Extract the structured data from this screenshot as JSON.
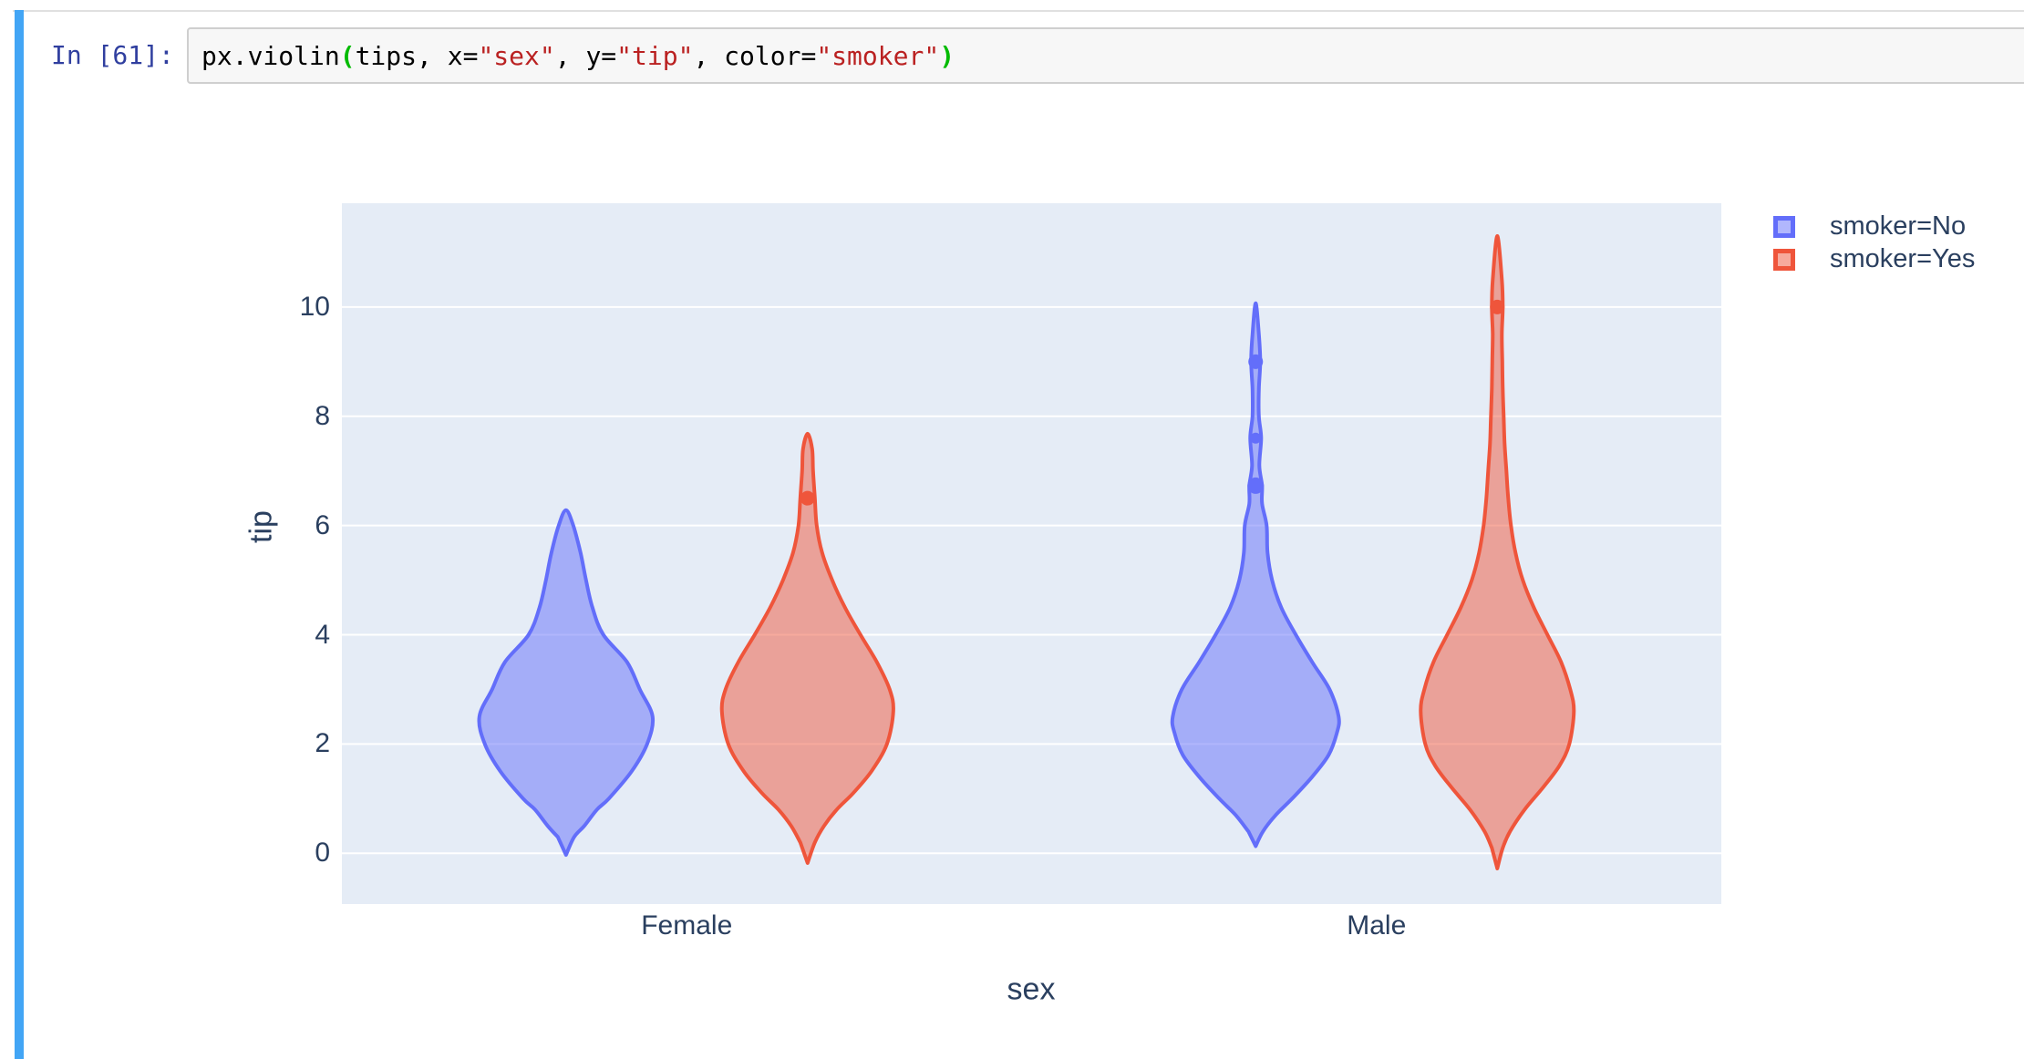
{
  "notebook": {
    "prompt": "In [61]:",
    "code_tokens": [
      {
        "text": "px.violin",
        "type": "plain"
      },
      {
        "text": "(",
        "type": "bracket"
      },
      {
        "text": "tips, x=",
        "type": "plain"
      },
      {
        "text": "\"sex\"",
        "type": "string"
      },
      {
        "text": ", y=",
        "type": "plain"
      },
      {
        "text": "\"tip\"",
        "type": "string"
      },
      {
        "text": ", color=",
        "type": "plain"
      },
      {
        "text": "\"smoker\"",
        "type": "string"
      },
      {
        "text": ")",
        "type": "bracket"
      }
    ]
  },
  "colors": {
    "selected_cell_bar": "#42a5f5",
    "prompt_text": "#303f9f",
    "code_string": "#ba2121",
    "code_bracket": "#00bb00",
    "plot_background": "#e5ecf6",
    "grid_line": "#ffffff",
    "axis_text": "#2a3f5f",
    "smoker_no": "#636efa",
    "smoker_yes": "#ef553b"
  },
  "chart_data": {
    "type": "violin",
    "title": "",
    "xlabel": "sex",
    "ylabel": "tip",
    "categories": [
      "Female",
      "Male"
    ],
    "yticks": [
      0,
      2,
      4,
      6,
      8,
      10
    ],
    "ylim": [
      -0.93,
      11.9
    ],
    "grid": true,
    "legend": {
      "position": "top-right-outside",
      "items": [
        {
          "label": "smoker=No",
          "line_color": "#636efa",
          "swatch_fill": "#b1b7fd"
        },
        {
          "label": "smoker=Yes",
          "line_color": "#ef553b",
          "swatch_fill": "#f7aa9d"
        }
      ]
    },
    "series": [
      {
        "name": "smoker=No",
        "line_color": "#636efa",
        "fill_opacity": 0.5
      },
      {
        "name": "smoker=Yes",
        "line_color": "#ef553b",
        "fill_opacity": 0.5
      }
    ],
    "violins": [
      {
        "category": "Female",
        "series": "smoker=No",
        "kde_extent": [
          -0.03,
          6.28
        ],
        "widest_at_tip": 2.5,
        "profile_v_hw": [
          [
            -0.03,
            0
          ],
          [
            0.3,
            9
          ],
          [
            0.5,
            20
          ],
          [
            0.8,
            34
          ],
          [
            1.0,
            47
          ],
          [
            1.5,
            72
          ],
          [
            2.0,
            89
          ],
          [
            2.5,
            95
          ],
          [
            3.0,
            81
          ],
          [
            3.5,
            67
          ],
          [
            4.0,
            41
          ],
          [
            4.5,
            29
          ],
          [
            5.0,
            22
          ],
          [
            5.5,
            16
          ],
          [
            6.0,
            8
          ],
          [
            6.28,
            0
          ]
        ],
        "bumps": []
      },
      {
        "category": "Female",
        "series": "smoker=Yes",
        "kde_extent": [
          -0.18,
          7.68
        ],
        "widest_at_tip": 2.6,
        "profile_v_hw": [
          [
            -0.18,
            0
          ],
          [
            0.2,
            8
          ],
          [
            0.5,
            18
          ],
          [
            0.8,
            32
          ],
          [
            1.1,
            50
          ],
          [
            1.5,
            70
          ],
          [
            2.0,
            87
          ],
          [
            2.6,
            94
          ],
          [
            3.0,
            90
          ],
          [
            3.5,
            76
          ],
          [
            4.0,
            58
          ],
          [
            4.5,
            41
          ],
          [
            5.0,
            27
          ],
          [
            5.5,
            16
          ],
          [
            6.0,
            10
          ],
          [
            6.5,
            8
          ],
          [
            7.0,
            6
          ],
          [
            7.4,
            5
          ],
          [
            7.68,
            0
          ]
        ],
        "bumps": [
          {
            "v": 6.5,
            "r": 8
          }
        ]
      },
      {
        "category": "Male",
        "series": "smoker=No",
        "kde_extent": [
          0.13,
          10.07
        ],
        "widest_at_tip": 2.5,
        "profile_v_hw": [
          [
            0.13,
            0
          ],
          [
            0.4,
            8
          ],
          [
            0.7,
            22
          ],
          [
            1.0,
            40
          ],
          [
            1.4,
            62
          ],
          [
            1.8,
            80
          ],
          [
            2.2,
            89
          ],
          [
            2.5,
            91
          ],
          [
            3.0,
            81
          ],
          [
            3.5,
            62
          ],
          [
            4.0,
            44
          ],
          [
            4.5,
            28
          ],
          [
            5.0,
            18
          ],
          [
            5.5,
            13
          ],
          [
            6.0,
            12
          ],
          [
            6.4,
            7
          ],
          [
            6.73,
            7
          ],
          [
            7.1,
            4
          ],
          [
            7.6,
            6
          ],
          [
            8.0,
            3.5
          ],
          [
            8.5,
            3.5
          ],
          [
            9.0,
            5
          ],
          [
            9.5,
            3.5
          ],
          [
            10.07,
            0
          ]
        ],
        "bumps": [
          {
            "v": 9.0,
            "r": 8
          },
          {
            "v": 7.6,
            "r": 6
          },
          {
            "v": 6.73,
            "r": 9
          }
        ]
      },
      {
        "category": "Male",
        "series": "smoker=Yes",
        "kde_extent": [
          -0.28,
          11.3
        ],
        "widest_at_tip": 2.6,
        "profile_v_hw": [
          [
            -0.28,
            0
          ],
          [
            0.1,
            6
          ],
          [
            0.4,
            14
          ],
          [
            0.8,
            30
          ],
          [
            1.2,
            50
          ],
          [
            1.6,
            68
          ],
          [
            2.0,
            79
          ],
          [
            2.6,
            84
          ],
          [
            3.0,
            80
          ],
          [
            3.5,
            70
          ],
          [
            4.0,
            55
          ],
          [
            4.5,
            40
          ],
          [
            5.0,
            28
          ],
          [
            5.5,
            20
          ],
          [
            6.0,
            15
          ],
          [
            6.5,
            12
          ],
          [
            7.0,
            10
          ],
          [
            7.5,
            8
          ],
          [
            8.0,
            7
          ],
          [
            8.5,
            6
          ],
          [
            9.0,
            5.5
          ],
          [
            9.5,
            5
          ],
          [
            10.0,
            6
          ],
          [
            10.5,
            5
          ],
          [
            11.3,
            0
          ]
        ],
        "bumps": [
          {
            "v": 10.0,
            "r": 8
          }
        ]
      }
    ]
  }
}
